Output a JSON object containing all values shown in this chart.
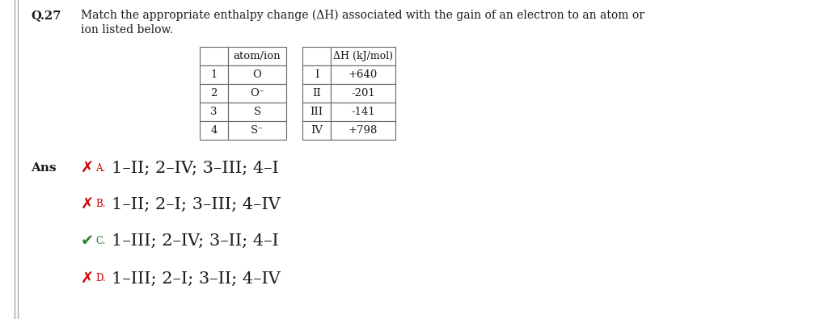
{
  "question_number": "Q.27",
  "question_text_line1": "Match the appropriate enthalpy change (ΔH) associated with the gain of an electron to an atom or",
  "question_text_line2": "ion listed below.",
  "table_left_header": [
    "",
    "atom/ion"
  ],
  "table_left_rows": [
    [
      "1",
      "O"
    ],
    [
      "2",
      "O⁻"
    ],
    [
      "3",
      "S"
    ],
    [
      "4",
      "S⁻"
    ]
  ],
  "table_right_header": [
    "",
    "ΔH (kJ/mol)"
  ],
  "table_right_rows": [
    [
      "I",
      "+640"
    ],
    [
      "II",
      "-201"
    ],
    [
      "III",
      "-141"
    ],
    [
      "IV",
      "+798"
    ]
  ],
  "ans_label": "Ans",
  "options": [
    {
      "label": "A.",
      "text": "1–II; 2–IV; 3–III; 4–I",
      "correct": false
    },
    {
      "label": "B.",
      "text": "1–II; 2–I; 3–III; 4–IV",
      "correct": false
    },
    {
      "label": "C.",
      "text": "1–III; 2–IV; 3–II; 4–I",
      "correct": true
    },
    {
      "label": "D.",
      "text": "1–III; 2–I; 3–II; 4–IV",
      "correct": false
    }
  ],
  "bg_color": "#ffffff",
  "text_color": "#1a1a1a",
  "correct_color": "#2e7d32",
  "wrong_color": "#cc0000",
  "left_bar_color": "#bbbbbb",
  "left_bar_color2": "#888888"
}
